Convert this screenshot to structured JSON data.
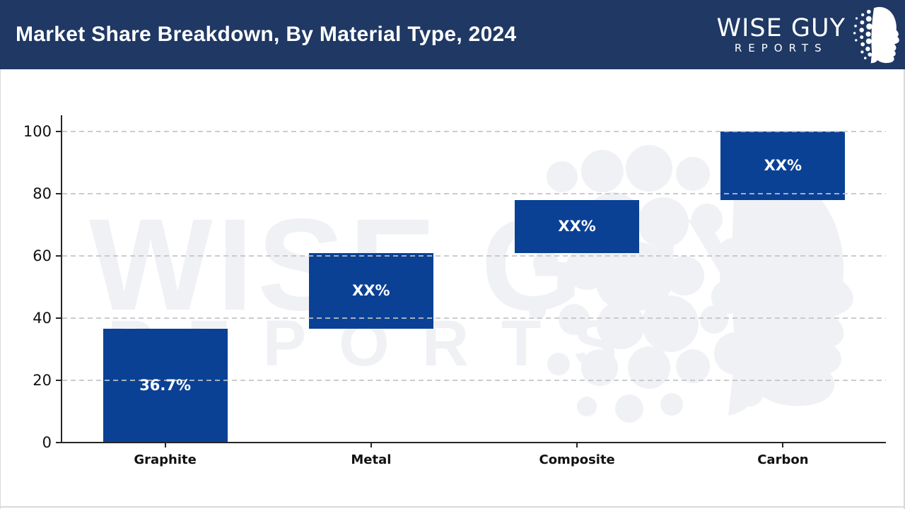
{
  "header": {
    "title": "Market Share Breakdown, By Material Type, 2024",
    "logo": {
      "name": "WISE GUY",
      "subtitle": "REPORTS"
    }
  },
  "watermark": {
    "line1": "WISE GUY",
    "line2": "REPORTS"
  },
  "chart_data": {
    "type": "bar",
    "subtype": "waterfall",
    "title": "Market Share Breakdown, By Material Type, 2024",
    "categories": [
      "Graphite",
      "Metal",
      "Composite",
      "Carbon"
    ],
    "series": [
      {
        "name": "Market share (%)",
        "segments": [
          {
            "category": "Graphite",
            "start": 0,
            "end": 36.7,
            "label": "36.7%"
          },
          {
            "category": "Metal",
            "start": 36.7,
            "end": 61,
            "label": "XX%"
          },
          {
            "category": "Composite",
            "start": 61,
            "end": 78,
            "label": "XX%"
          },
          {
            "category": "Carbon",
            "start": 78,
            "end": 100,
            "label": "XX%"
          }
        ]
      }
    ],
    "xlabel": "",
    "ylabel": "",
    "ylim": [
      0,
      100
    ],
    "yticks": [
      0,
      20,
      40,
      60,
      80,
      100
    ],
    "grid": "horizontal-dashed",
    "legend": "none",
    "bar_color": "#0a4195",
    "value_label_color": "#ffffff"
  },
  "colors": {
    "header_bg": "#1f3864",
    "bar": "#0a4195",
    "grid": "#c9c9cc",
    "axis": "#262626",
    "watermark": "#f0f1f4",
    "page_border": "#d9d9d9"
  }
}
